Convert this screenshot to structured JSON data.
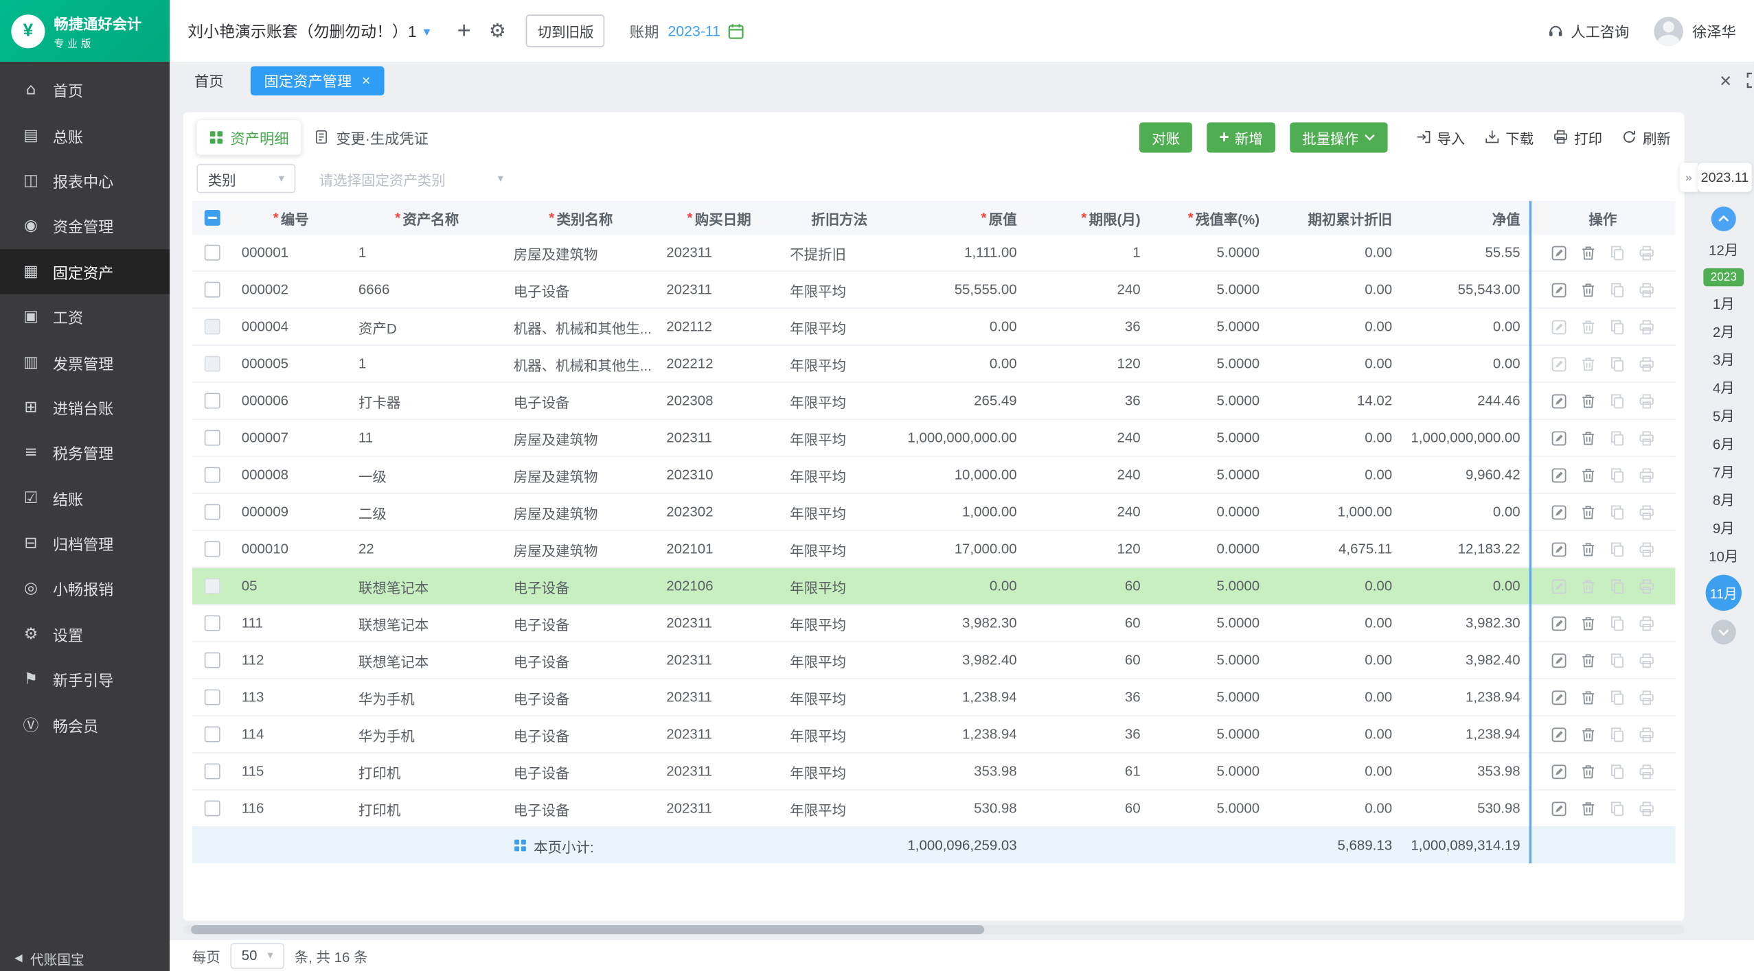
{
  "colors": {
    "accent_green": "#4fae52",
    "accent_blue": "#3d9ff0",
    "sidebar_bg": "#3b3b3d",
    "highlight_row_bg": "#c8efbf",
    "subtotal_row_bg": "#e9f4fb",
    "tab_active_bg": "#2f9cf5"
  },
  "sidebar": {
    "logo": {
      "title": "畅捷通好会计",
      "subtitle": "专业版"
    },
    "items": [
      {
        "label": "首页",
        "icon": "home-icon"
      },
      {
        "label": "总账",
        "icon": "ledger-icon"
      },
      {
        "label": "报表中心",
        "icon": "report-icon"
      },
      {
        "label": "资金管理",
        "icon": "funds-icon"
      },
      {
        "label": "固定资产",
        "icon": "fixed-assets-icon",
        "active": true
      },
      {
        "label": "工资",
        "icon": "salary-icon"
      },
      {
        "label": "发票管理",
        "icon": "invoice-icon"
      },
      {
        "label": "进销台账",
        "icon": "purchase-ledger-icon"
      },
      {
        "label": "税务管理",
        "icon": "tax-icon"
      },
      {
        "label": "结账",
        "icon": "closing-icon"
      },
      {
        "label": "归档管理",
        "icon": "archive-icon"
      },
      {
        "label": "小畅报销",
        "icon": "reimburse-icon"
      },
      {
        "label": "设置",
        "icon": "settings-icon"
      },
      {
        "label": "新手引导",
        "icon": "guide-icon"
      },
      {
        "label": "畅会员",
        "icon": "member-icon"
      }
    ],
    "bottom_label": "代账国宝"
  },
  "topbar": {
    "account_set": "刘小艳演示账套（勿删勿动！）1",
    "switch_old_label": "切到旧版",
    "period_label": "账期",
    "period_value": "2023-11",
    "consult_label": "人工咨询",
    "username": "徐泽华"
  },
  "tabbar": {
    "tabs": [
      {
        "label": "首页"
      },
      {
        "label": "固定资产管理",
        "active": true,
        "closable": true
      }
    ],
    "controls": [
      {
        "icon": "close-icon"
      },
      {
        "icon": "fullscreen-icon"
      }
    ]
  },
  "toolbar": {
    "subtabs": [
      {
        "label": "资产明细",
        "icon": "grid-icon",
        "active": true
      },
      {
        "label": "变更·生成凭证",
        "icon": "voucher-icon"
      }
    ],
    "reconcile_label": "对账",
    "add_label": "新增",
    "batch_label": "批量操作",
    "secondary_buttons": [
      {
        "label": "导入",
        "icon": "import-icon"
      },
      {
        "label": "下载",
        "icon": "download-icon"
      },
      {
        "label": "打印",
        "icon": "print-icon"
      },
      {
        "label": "刷新",
        "icon": "refresh-icon"
      }
    ]
  },
  "filters": {
    "category_label": "类别",
    "category_placeholder": "请选择固定资产类别"
  },
  "table": {
    "columns": [
      {
        "label": "编号",
        "required": true,
        "align": "left"
      },
      {
        "label": "资产名称",
        "required": true,
        "align": "left"
      },
      {
        "label": "类别名称",
        "required": true,
        "align": "left"
      },
      {
        "label": "购买日期",
        "required": true,
        "align": "left"
      },
      {
        "label": "折旧方法",
        "required": false,
        "align": "left"
      },
      {
        "label": "原值",
        "required": true,
        "align": "right"
      },
      {
        "label": "期限(月)",
        "required": true,
        "align": "right"
      },
      {
        "label": "残值率(%)",
        "required": true,
        "align": "right"
      },
      {
        "label": "期初累计折旧",
        "required": false,
        "align": "right"
      },
      {
        "label": "净值",
        "required": false,
        "align": "right"
      },
      {
        "label": "操作",
        "required": false,
        "align": "center"
      }
    ],
    "rows": [
      {
        "cells": [
          "000001",
          "1",
          "房屋及建筑物",
          "202311",
          "不提折旧",
          "1,111.00",
          "1",
          "5.0000",
          "0.00",
          "55.55"
        ]
      },
      {
        "cells": [
          "000002",
          "6666",
          "电子设备",
          "202311",
          "年限平均",
          "55,555.00",
          "240",
          "5.0000",
          "0.00",
          "55,543.00"
        ]
      },
      {
        "cells": [
          "000004",
          "资产D",
          "机器、机械和其他生...",
          "202112",
          "年限平均",
          "0.00",
          "36",
          "5.0000",
          "0.00",
          "0.00"
        ],
        "disabled": true
      },
      {
        "cells": [
          "000005",
          "1",
          "机器、机械和其他生...",
          "202212",
          "年限平均",
          "0.00",
          "120",
          "5.0000",
          "0.00",
          "0.00"
        ],
        "disabled": true
      },
      {
        "cells": [
          "000006",
          "打卡器",
          "电子设备",
          "202308",
          "年限平均",
          "265.49",
          "36",
          "5.0000",
          "14.02",
          "244.46"
        ]
      },
      {
        "cells": [
          "000007",
          "11",
          "房屋及建筑物",
          "202311",
          "年限平均",
          "1,000,000,000.00",
          "240",
          "5.0000",
          "0.00",
          "1,000,000,000.00"
        ]
      },
      {
        "cells": [
          "000008",
          "一级",
          "房屋及建筑物",
          "202310",
          "年限平均",
          "10,000.00",
          "240",
          "5.0000",
          "0.00",
          "9,960.42"
        ]
      },
      {
        "cells": [
          "000009",
          "二级",
          "房屋及建筑物",
          "202302",
          "年限平均",
          "1,000.00",
          "240",
          "0.0000",
          "1,000.00",
          "0.00"
        ]
      },
      {
        "cells": [
          "000010",
          "22",
          "房屋及建筑物",
          "202101",
          "年限平均",
          "17,000.00",
          "120",
          "0.0000",
          "4,675.11",
          "12,183.22"
        ]
      },
      {
        "cells": [
          "05",
          "联想笔记本",
          "电子设备",
          "202106",
          "年限平均",
          "0.00",
          "60",
          "5.0000",
          "0.00",
          "0.00"
        ],
        "disabled": true,
        "highlighted": true
      },
      {
        "cells": [
          "111",
          "联想笔记本",
          "电子设备",
          "202311",
          "年限平均",
          "3,982.30",
          "60",
          "5.0000",
          "0.00",
          "3,982.30"
        ]
      },
      {
        "cells": [
          "112",
          "联想笔记本",
          "电子设备",
          "202311",
          "年限平均",
          "3,982.40",
          "60",
          "5.0000",
          "0.00",
          "3,982.40"
        ]
      },
      {
        "cells": [
          "113",
          "华为手机",
          "电子设备",
          "202311",
          "年限平均",
          "1,238.94",
          "36",
          "5.0000",
          "0.00",
          "1,238.94"
        ]
      },
      {
        "cells": [
          "114",
          "华为手机",
          "电子设备",
          "202311",
          "年限平均",
          "1,238.94",
          "36",
          "5.0000",
          "0.00",
          "1,238.94"
        ]
      },
      {
        "cells": [
          "115",
          "打印机",
          "电子设备",
          "202311",
          "年限平均",
          "353.98",
          "61",
          "5.0000",
          "0.00",
          "353.98"
        ]
      },
      {
        "cells": [
          "116",
          "打印机",
          "电子设备",
          "202311",
          "年限平均",
          "530.98",
          "60",
          "5.0000",
          "0.00",
          "530.98"
        ]
      }
    ],
    "subtotal": {
      "label": "本页小计:",
      "original_value": "1,000,096,259.03",
      "initial_depreciation": "5,689.13",
      "net_value": "1,000,089,314.19"
    }
  },
  "pagination": {
    "per_page_label": "每页",
    "per_page_value": "50",
    "suffix": "条, 共 16 条"
  },
  "calendar": {
    "current": "2023.11",
    "months": [
      {
        "label": "12月"
      },
      {
        "label": "2023",
        "year": true
      },
      {
        "label": "1月"
      },
      {
        "label": "2月"
      },
      {
        "label": "3月"
      },
      {
        "label": "4月"
      },
      {
        "label": "5月"
      },
      {
        "label": "6月"
      },
      {
        "label": "7月"
      },
      {
        "label": "8月"
      },
      {
        "label": "9月"
      },
      {
        "label": "10月"
      },
      {
        "label": "11月",
        "active": true
      }
    ]
  }
}
